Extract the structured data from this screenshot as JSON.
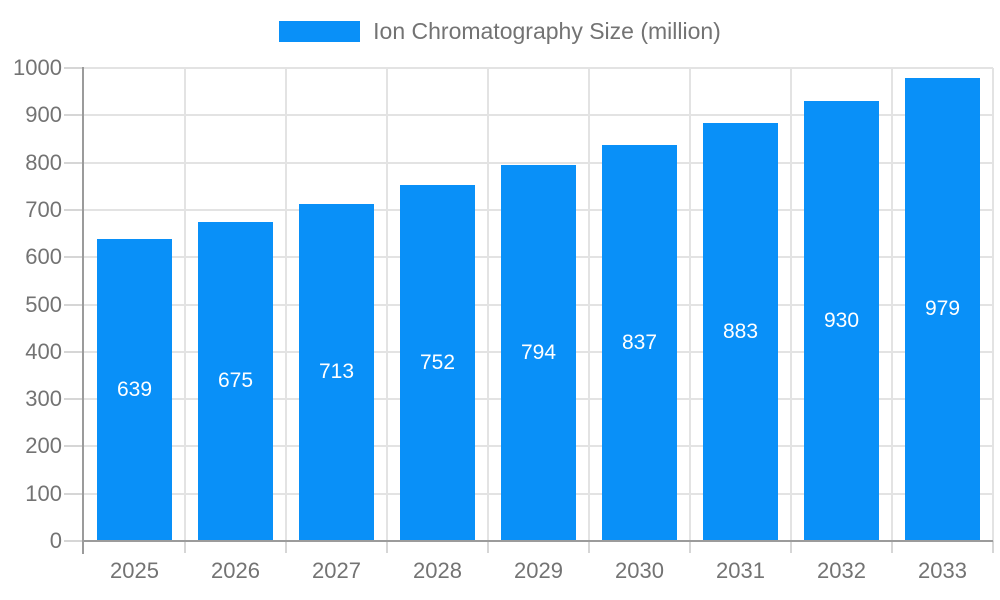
{
  "legend": {
    "label": "Ion Chromatography Size (million)"
  },
  "chart_data": {
    "type": "bar",
    "title": "",
    "xlabel": "",
    "ylabel": "",
    "categories": [
      "2025",
      "2026",
      "2027",
      "2028",
      "2029",
      "2030",
      "2031",
      "2032",
      "2033"
    ],
    "values": [
      639,
      675,
      713,
      752,
      794,
      837,
      883,
      930,
      979
    ],
    "series_name": "Ion Chromatography Size (million)",
    "ylim": [
      0,
      1000
    ],
    "ytick_step": 100,
    "grid": true,
    "legend_position": "top",
    "bar_color": "#0990f8",
    "value_label_color": "#ffffff",
    "axis_text_color": "#737373",
    "axis_line_color": "#9b9b9b",
    "gridline_color": "#e3e3e3"
  }
}
